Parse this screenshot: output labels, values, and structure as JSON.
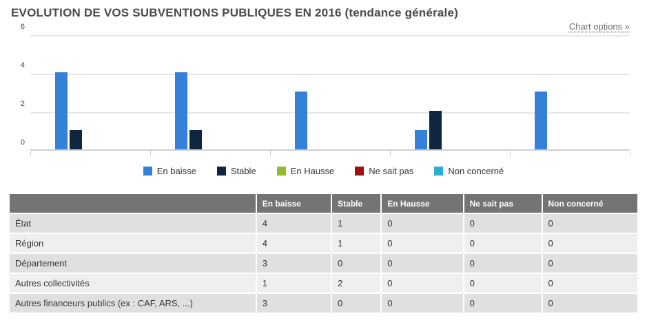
{
  "title": "EVOLUTION DE VOS SUBVENTIONS PUBLIQUES EN 2016 (tendance générale)",
  "chart_options_label": "Chart options »",
  "colors": {
    "en_baisse": "#3580d8",
    "stable": "#0f2540",
    "en_hausse": "#8fbc30",
    "ne_sait_pas": "#9e1111",
    "non_concerne": "#2bafcc",
    "table_header_bg": "#747474",
    "row_odd_bg": "#e0e0e0",
    "row_even_bg": "#efefef"
  },
  "chart_data": {
    "type": "bar",
    "categories": [
      "État",
      "Région",
      "Département",
      "Autres collectivités",
      "Autres financeurs publics (ex : CAF, ARS, ...)"
    ],
    "series": [
      {
        "name": "En baisse",
        "color": "#3580d8",
        "values": [
          4,
          4,
          3,
          1,
          3
        ]
      },
      {
        "name": "Stable",
        "color": "#0f2540",
        "values": [
          1,
          1,
          0,
          2,
          0
        ]
      },
      {
        "name": "En Hausse",
        "color": "#8fbc30",
        "values": [
          0,
          0,
          0,
          0,
          0
        ]
      },
      {
        "name": "Ne sait pas",
        "color": "#9e1111",
        "values": [
          0,
          0,
          0,
          0,
          0
        ]
      },
      {
        "name": "Non concerné",
        "color": "#2bafcc",
        "values": [
          0,
          0,
          0,
          0,
          0
        ]
      }
    ],
    "ylim": [
      0,
      6
    ],
    "yticks": [
      0,
      2,
      4,
      6
    ],
    "grid": true,
    "legend_position": "bottom",
    "x_tick_labels_visible": false
  },
  "table": {
    "headers": [
      "",
      "En baisse",
      "Stable",
      "En Hausse",
      "Ne sait pas",
      "Non concerné"
    ],
    "rows": [
      {
        "label": "État",
        "values": [
          4,
          1,
          0,
          0,
          0
        ]
      },
      {
        "label": "Région",
        "values": [
          4,
          1,
          0,
          0,
          0
        ]
      },
      {
        "label": "Département",
        "values": [
          3,
          0,
          0,
          0,
          0
        ]
      },
      {
        "label": "Autres collectivités",
        "values": [
          1,
          2,
          0,
          0,
          0
        ]
      },
      {
        "label": "Autres financeurs publics (ex : CAF, ARS, ...)",
        "values": [
          3,
          0,
          0,
          0,
          0
        ]
      }
    ]
  }
}
